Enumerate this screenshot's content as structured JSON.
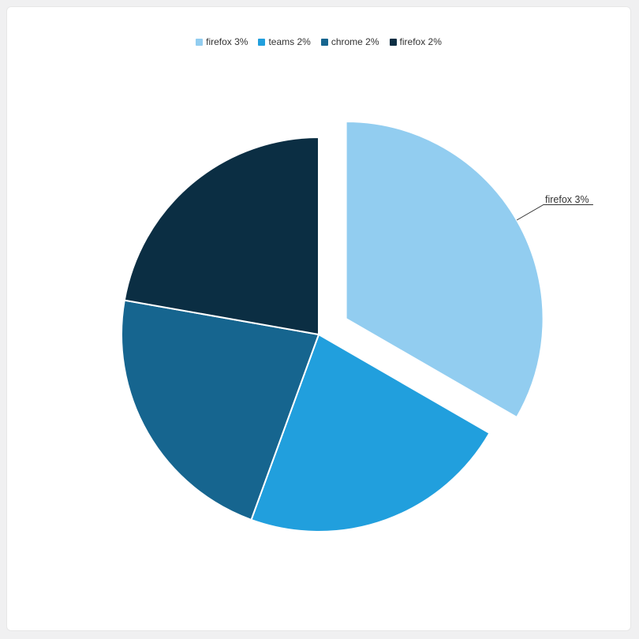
{
  "page": {
    "background_color": "#f0f0f1",
    "card_background_color": "#ffffff"
  },
  "chart_data": {
    "type": "pie",
    "title": "",
    "legend_position": "top",
    "total_value": 9,
    "slices": [
      {
        "label": "firefox 3%",
        "value": 3,
        "pie_share_pct": 33.3,
        "color": "#92cdf0",
        "exploded": true,
        "callout": true
      },
      {
        "label": "teams 2%",
        "value": 2,
        "pie_share_pct": 22.2,
        "color": "#219fdd",
        "exploded": false,
        "callout": false
      },
      {
        "label": "chrome 2%",
        "value": 2,
        "pie_share_pct": 22.2,
        "color": "#16658f",
        "exploded": false,
        "callout": false
      },
      {
        "label": "firefox 2%",
        "value": 2,
        "pie_share_pct": 22.2,
        "color": "#0b2e43",
        "exploded": false,
        "callout": false
      }
    ],
    "slice_border_color": "#ffffff",
    "label_text_color": "#333333",
    "label_line_color": "#333333"
  }
}
